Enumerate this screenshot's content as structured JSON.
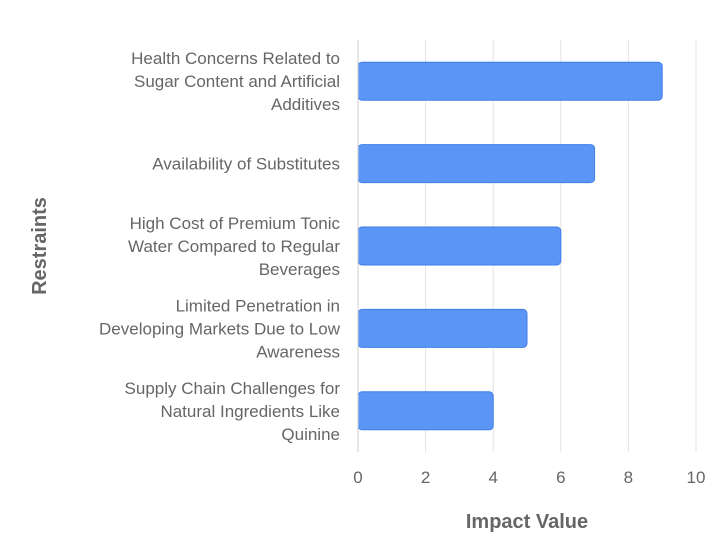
{
  "chart_data": {
    "type": "bar",
    "orientation": "horizontal",
    "categories": [
      "Health Concerns Related to Sugar Content and Artificial Additives",
      "Availability of Substitutes",
      "High Cost of Premium Tonic Water Compared to Regular Beverages",
      "Limited Penetration in Developing Markets Due to Low Awareness",
      "Supply Chain Challenges for Natural Ingredients Like Quinine"
    ],
    "category_lines": [
      [
        "Health Concerns Related to",
        "Sugar Content and Artificial",
        "Additives"
      ],
      [
        "Availability of Substitutes"
      ],
      [
        "High Cost of Premium Tonic",
        "Water Compared to Regular",
        "Beverages"
      ],
      [
        "Limited Penetration in",
        "Developing Markets Due to Low",
        "Awareness"
      ],
      [
        "Supply Chain Challenges for",
        "Natural Ingredients Like",
        "Quinine"
      ]
    ],
    "values": [
      9,
      7,
      6,
      5,
      4
    ],
    "xlabel": "Impact Value",
    "ylabel": "Restraints",
    "xlim": [
      0,
      10
    ],
    "xticks": [
      0,
      2,
      4,
      6,
      8,
      10
    ],
    "grid": true,
    "legend": "none",
    "bar_color": "#5b96f7",
    "bar_border_color": "#3f7ee8"
  }
}
